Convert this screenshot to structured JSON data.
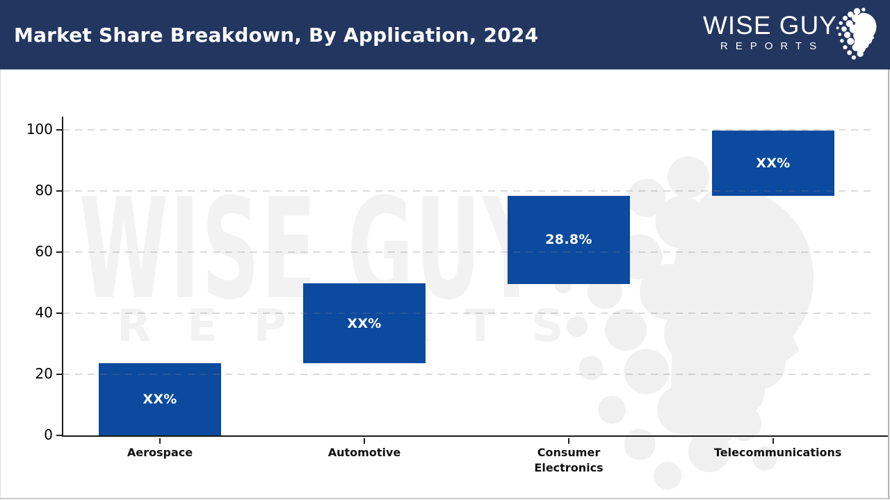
{
  "header": {
    "title": "Market Share Breakdown, By Application, 2024",
    "bg_color": "#223660",
    "logo": {
      "line1": "WISE GUY",
      "line2": "REPORTS"
    }
  },
  "watermark": {
    "line1": "WISE GUY",
    "line2": "REPORTS"
  },
  "chart_data": {
    "type": "bar",
    "subtype": "floating-waterfall",
    "title": "Market Share Breakdown, By Application, 2024",
    "categories": [
      "Aerospace",
      "Automotive",
      "Consumer Electronics",
      "Telecommunications"
    ],
    "series": [
      {
        "name": "Market share (%)",
        "segments": [
          {
            "category": "Aerospace",
            "start": 0,
            "end": 23.6,
            "label": "XX%"
          },
          {
            "category": "Automotive",
            "start": 23.6,
            "end": 49.7,
            "label": "XX%"
          },
          {
            "category": "Consumer Electronics",
            "start": 49.6,
            "end": 78.4,
            "label": "28.8%"
          },
          {
            "category": "Telecommunications",
            "start": 78.4,
            "end": 99.8,
            "label": "XX%"
          }
        ]
      }
    ],
    "yticks": [
      0,
      20,
      40,
      60,
      80,
      100
    ],
    "ylim": [
      0,
      104
    ],
    "xlabel": "",
    "ylabel": "",
    "grid": "horizontal-dashed",
    "legend": "none",
    "bar_color": "#0b4a9e",
    "bar_label_color": "#ffffff",
    "axis_color": "#1a1a1a",
    "grid_color": "#dedede"
  }
}
